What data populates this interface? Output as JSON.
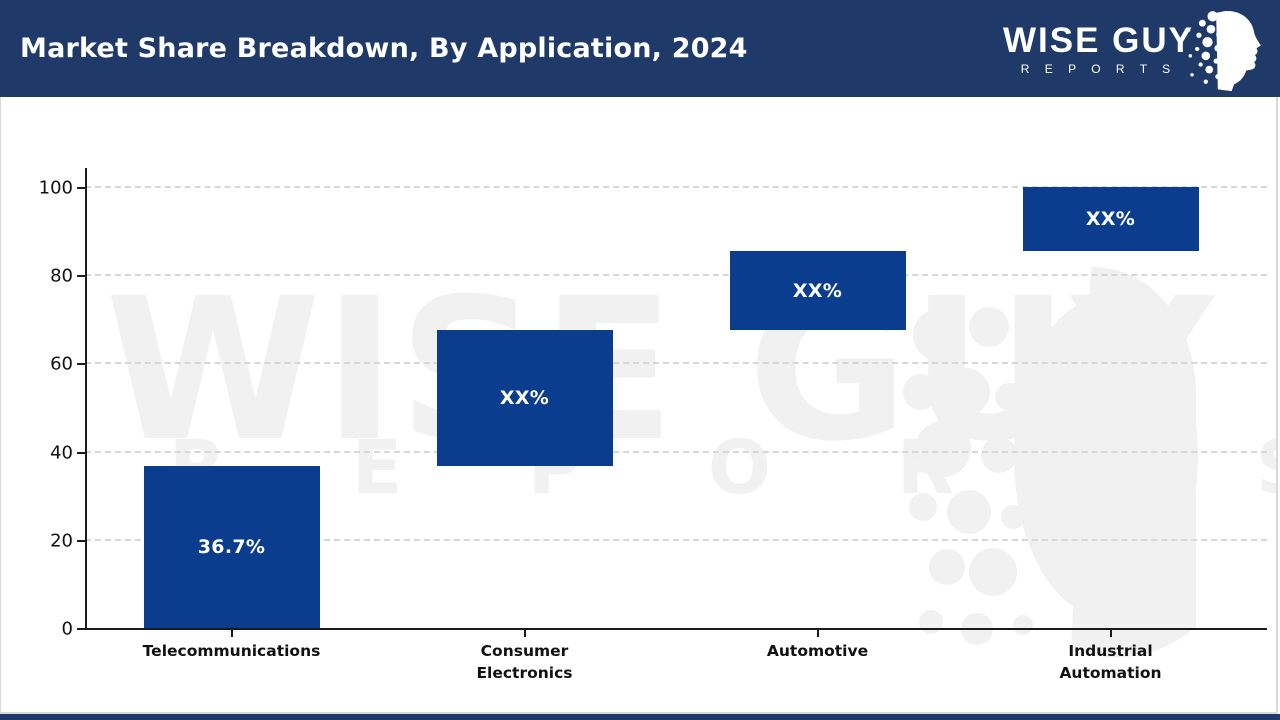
{
  "header": {
    "title": "Market Share Breakdown, By Application, 2024",
    "logo": {
      "name": "WISE GUY",
      "tagline": "R E P O R T S"
    }
  },
  "watermark": {
    "name": "WISE GUY",
    "tagline": "R E P O R T S"
  },
  "chart_data": {
    "type": "bar",
    "subtype": "floating-segment-market-share",
    "title": "Market Share Breakdown, By Application, 2024",
    "categories": [
      "Telecommunications",
      "Consumer\nElectronics",
      "Automotive",
      "Industrial\nAutomation"
    ],
    "series": [
      {
        "name": "Telecommunications",
        "start": 0,
        "end": 36.7,
        "label": "36.7%"
      },
      {
        "name": "Consumer Electronics",
        "start": 36.7,
        "end": 67.5,
        "label": "XX%"
      },
      {
        "name": "Automotive",
        "start": 67.5,
        "end": 85.5,
        "label": "XX%"
      },
      {
        "name": "Industrial Automation",
        "start": 85.5,
        "end": 100,
        "label": "XX%"
      }
    ],
    "xlabel": "",
    "ylabel": "",
    "ylim": [
      0,
      105
    ],
    "yticks": [
      0,
      20,
      40,
      60,
      80,
      100
    ],
    "grid": "horizontal-dashed",
    "legend": "none"
  },
  "colors": {
    "header_bg": "#1F3A68",
    "bar": "#0B3D8F",
    "bar_label": "#FFFFFF",
    "axis": "#1A1A1A",
    "gridline": "#D7D7D7",
    "watermark": "#F1F1F1",
    "frame": "#D9D9D9"
  }
}
